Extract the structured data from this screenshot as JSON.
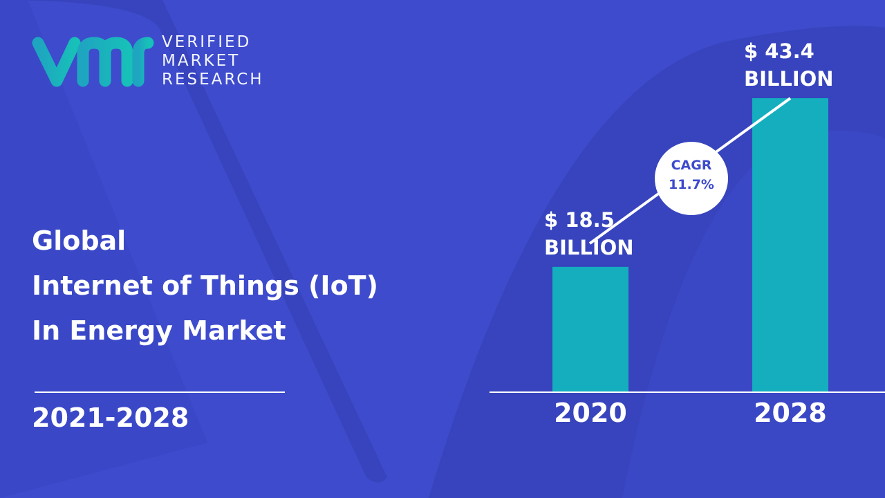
{
  "logo": [
    "VERIFIED",
    "MARKET",
    "RESEARCH"
  ],
  "title_lines": [
    "Global",
    "Internet of Things (IoT)",
    "In Energy Market"
  ],
  "period": "2021-2028",
  "chart_data": {
    "type": "bar",
    "categories": [
      "2020",
      "2028"
    ],
    "values": [
      18.5,
      43.4
    ],
    "value_labels": [
      "$ 18.5 BILLION",
      "$ 43.4 BILLION"
    ],
    "color": "#14aebf",
    "annotations": [
      "CAGR",
      "11.7%"
    ]
  }
}
